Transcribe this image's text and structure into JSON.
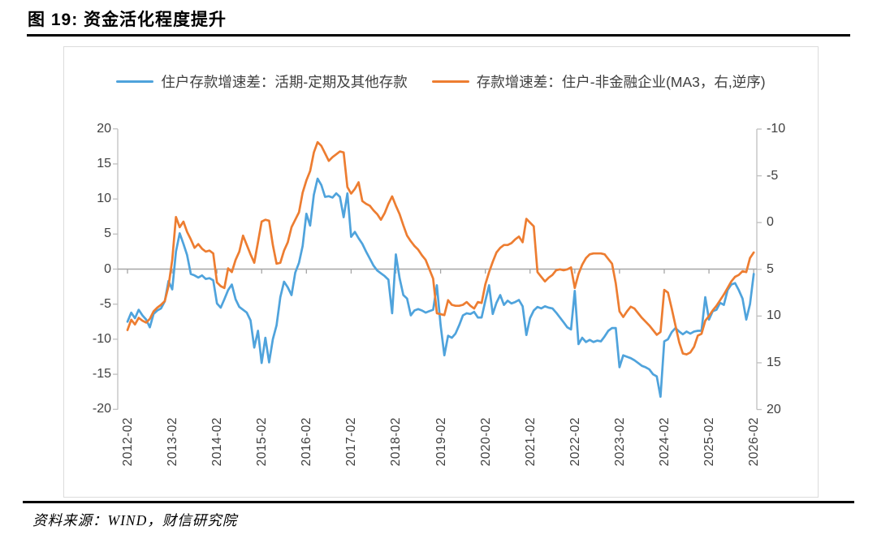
{
  "figure": {
    "title": "图 19:  资金活化程度提升",
    "source": "资料来源：WIND，财信研究院"
  },
  "chart_data": {
    "type": "line",
    "title": "资金活化程度提升",
    "x_frequency": "monthly",
    "x_start": "2012-02",
    "x_end": "2026-02",
    "x_tick_labels": [
      "2012-02",
      "2013-02",
      "2014-02",
      "2015-02",
      "2016-02",
      "2017-02",
      "2018-02",
      "2019-02",
      "2020-02",
      "2021-02",
      "2022-02",
      "2023-02",
      "2024-02",
      "2025-02",
      "2026-02"
    ],
    "left_axis": {
      "min": -20,
      "max": 20,
      "ticks": [
        20,
        15,
        10,
        5,
        0,
        -5,
        -10,
        -15,
        -20
      ]
    },
    "right_axis": {
      "min": -10,
      "max": 20,
      "ticks": [
        -10,
        -5,
        0,
        5,
        10,
        15,
        20
      ],
      "inverted": true
    },
    "grid": "zero-line-only",
    "legend_position": "top-center",
    "style": {
      "zero_line_color": "#a6a6a6",
      "axis_color": "#bfbfbf",
      "frame_color": "#dcdcdc"
    },
    "series": [
      {
        "name": "住户存款增速差：活期-定期及其他存款",
        "axis": "left",
        "color": "#4fa3dc",
        "values": [
          -7.5,
          -6.2,
          -7.0,
          -5.8,
          -6.6,
          -7.2,
          -8.3,
          -6.4,
          -5.9,
          -5.6,
          -4.6,
          -1.7,
          -2.9,
          2.5,
          5.1,
          3.6,
          2.0,
          -0.7,
          -0.9,
          -1.2,
          -0.9,
          -1.4,
          -1.3,
          -1.6,
          -4.9,
          -5.5,
          -4.3,
          -3.0,
          -2.2,
          -4.3,
          -5.4,
          -5.8,
          -6.2,
          -7.3,
          -11.2,
          -8.8,
          -13.4,
          -9.8,
          -13.3,
          -10.0,
          -8.0,
          -4.0,
          -1.8,
          -2.6,
          -3.7,
          -0.5,
          0.9,
          3.3,
          7.9,
          6.2,
          10.6,
          12.9,
          12.0,
          10.3,
          10.4,
          10.2,
          10.8,
          10.3,
          7.4,
          10.8,
          4.6,
          5.3,
          4.4,
          3.6,
          2.5,
          1.5,
          0.5,
          -0.2,
          -0.6,
          -1.0,
          -1.5,
          -6.3,
          2.1,
          -1.3,
          -3.7,
          -4.2,
          -6.6,
          -5.9,
          -5.7,
          -5.9,
          -6.2,
          -6.0,
          -5.8,
          -2.3,
          -8.0,
          -12.3,
          -9.5,
          -9.8,
          -9.2,
          -8.0,
          -6.6,
          -6.3,
          -6.4,
          -6.1,
          -6.9,
          -6.9,
          -4.5,
          -2.3,
          -6.4,
          -4.8,
          -3.7,
          -5.1,
          -4.5,
          -4.9,
          -4.7,
          -4.4,
          -5.3,
          -9.4,
          -7.0,
          -5.9,
          -5.4,
          -5.6,
          -5.3,
          -5.5,
          -5.6,
          -6.2,
          -6.9,
          -7.6,
          -8.3,
          -8.6,
          -3.1,
          -10.7,
          -9.8,
          -10.4,
          -10.1,
          -10.4,
          -10.2,
          -10.3,
          -9.6,
          -8.8,
          -8.4,
          -8.4,
          -14.0,
          -12.3,
          -12.5,
          -12.7,
          -13.0,
          -13.4,
          -13.8,
          -14.0,
          -14.3,
          -15.0,
          -15.3,
          -18.2,
          -10.3,
          -10.0,
          -9.0,
          -8.4,
          -8.9,
          -9.3,
          -8.9,
          -9.2,
          -8.9,
          -8.8,
          -8.8,
          -4.0,
          -7.2,
          -6.0,
          -5.8,
          -4.8,
          -5.1,
          -3.0,
          -2.2,
          -2.0,
          -3.0,
          -4.2,
          -7.2,
          -5.0,
          -0.7
        ]
      },
      {
        "name": "存款增速差：住户-非金融企业(MA3，右,逆序)",
        "axis": "right_inverted",
        "color": "#ed7d31",
        "values": [
          11.5,
          10.4,
          10.9,
          10.2,
          10.5,
          10.7,
          10.3,
          9.5,
          9.1,
          8.8,
          8.4,
          6.8,
          4.0,
          -0.6,
          0.5,
          -0.1,
          1.0,
          1.8,
          2.7,
          2.3,
          2.8,
          3.1,
          3.0,
          3.3,
          6.4,
          6.8,
          7.0,
          4.9,
          5.3,
          4.0,
          3.1,
          1.4,
          2.4,
          3.4,
          4.3,
          2.1,
          -0.1,
          -0.3,
          -0.2,
          2.4,
          4.4,
          4.3,
          3.0,
          2.1,
          0.5,
          -0.3,
          -1.1,
          -3.2,
          -4.5,
          -5.5,
          -7.5,
          -8.6,
          -8.2,
          -7.4,
          -6.6,
          -7.0,
          -7.3,
          -7.6,
          -7.5,
          -3.8,
          -3.1,
          -3.6,
          -4.3,
          -2.3,
          -2.0,
          -1.8,
          -1.3,
          -0.9,
          -0.3,
          -1.0,
          -2.0,
          -2.8,
          -1.8,
          -0.9,
          0.3,
          1.4,
          2.0,
          2.5,
          2.9,
          3.5,
          4.0,
          5.0,
          6.0,
          9.7,
          9.8,
          9.9,
          8.3,
          8.8,
          8.9,
          8.9,
          8.8,
          8.5,
          8.9,
          9.2,
          8.5,
          8.6,
          6.6,
          5.3,
          4.2,
          3.2,
          2.7,
          2.4,
          2.4,
          2.2,
          1.8,
          1.5,
          2.1,
          -0.4,
          0.0,
          0.4,
          5.3,
          5.8,
          6.3,
          5.9,
          5.6,
          5.1,
          5.0,
          5.1,
          5.0,
          4.8,
          7.0,
          5.5,
          4.5,
          3.8,
          3.4,
          3.3,
          3.3,
          3.3,
          3.4,
          3.9,
          4.4,
          6.5,
          9.5,
          10.1,
          9.5,
          9.0,
          9.2,
          9.7,
          10.2,
          10.6,
          11.0,
          11.5,
          12.0,
          11.7,
          7.2,
          7.5,
          9.2,
          11.0,
          12.8,
          14.0,
          14.1,
          13.9,
          13.3,
          12.1,
          11.9,
          10.5,
          10.0,
          9.4,
          8.9,
          8.3,
          7.7,
          7.0,
          6.3,
          5.8,
          5.6,
          5.2,
          5.3,
          3.8,
          3.2
        ]
      }
    ]
  }
}
